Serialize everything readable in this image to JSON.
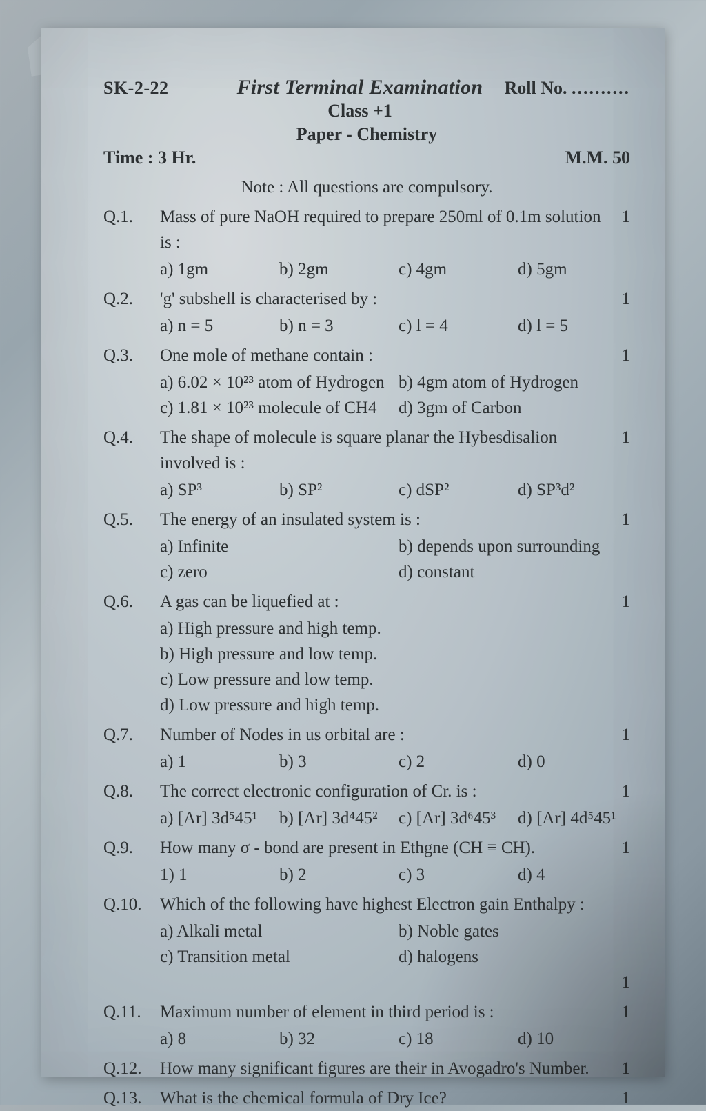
{
  "header": {
    "code": "SK-2-22",
    "exam_title": "First Terminal Examination",
    "class_line": "Class +1",
    "roll_label": "Roll No.",
    "roll_dots": "..........",
    "paper_line": "Paper - Chemistry",
    "time": "Time : 3 Hr.",
    "mm": "M.M. 50",
    "note": "Note : All questions are compulsory."
  },
  "questions": [
    {
      "num": "Q.1.",
      "stem": "Mass of pure NaOH required to prepare 250ml of 0.1m solution is :",
      "marks": "1",
      "opts": [
        "a)   1gm",
        "b) 2gm",
        "c) 4gm",
        "d) 5gm"
      ]
    },
    {
      "num": "Q.2.",
      "stem": "'g' subshell is characterised by :",
      "marks": "1",
      "opts": [
        "a)  n = 5",
        "b) n = 3",
        "c) l = 4",
        "d) l = 5"
      ]
    },
    {
      "num": "Q.3.",
      "stem": "One mole of methane contain :",
      "marks": "1",
      "opts": [
        "a) 6.02 × 10²³ atom of Hydrogen",
        "b) 4gm atom of Hydrogen",
        "c) 1.81 × 10²³ molecule of CH4",
        "d) 3gm of Carbon"
      ],
      "cols": "2"
    },
    {
      "num": "Q.4.",
      "stem": "The shape of molecule is square planar the Hybesdisalion involved is :",
      "marks": "1",
      "opts": [
        "a)  SP³",
        "b) SP²",
        "c) dSP²",
        "d) SP³d²"
      ]
    },
    {
      "num": "Q.5.",
      "stem": "The energy of an insulated system is :",
      "marks": "1",
      "opts": [
        "a)  Infinite",
        "b) depends upon surrounding",
        "c)  zero",
        "d) constant"
      ],
      "cols": "2"
    },
    {
      "num": "Q.6.",
      "stem": "A gas can be liquefied at :",
      "marks": "1",
      "opts": [
        "a)  High pressure and high temp.",
        "b)  High pressure and low temp.",
        "c)  Low pressure and low temp.",
        "d)  Low pressure and high temp."
      ],
      "cols": "stack"
    },
    {
      "num": "Q.7.",
      "stem": "Number of Nodes in us orbital are :",
      "marks": "1",
      "opts": [
        "a)  1",
        "b) 3",
        "c) 2",
        "d) 0"
      ]
    },
    {
      "num": "Q.8.",
      "stem": "The correct electronic configuration of Cr. is :",
      "marks": "1",
      "opts": [
        "a) [Ar] 3d⁵45¹",
        "b) [Ar] 3d⁴45²",
        "c) [Ar] 3d⁶45³",
        "d) [Ar] 4d⁵45¹"
      ]
    },
    {
      "num": "Q.9.",
      "stem": "How many σ - bond are present in Ethgne (CH ≡ CH).",
      "marks": "1",
      "opts": [
        "1)  1",
        "b) 2",
        "c) 3",
        "d) 4"
      ]
    },
    {
      "num": "Q.10.",
      "stem": "Which of the following have highest Electron gain Enthalpy :",
      "marks": "1",
      "opts": [
        "a)  Alkali metal",
        "b) Noble gates",
        "c)  Transition metal",
        "d) halogens"
      ],
      "cols": "2",
      "marks_below": true
    },
    {
      "num": "Q.11.",
      "stem": "Maximum number of element in third period is :",
      "marks": "1",
      "opts": [
        "a)  8",
        "b) 32",
        "c) 18",
        "d) 10"
      ]
    },
    {
      "num": "Q.12.",
      "stem": "How many significant figures are their in Avogadro's Number.",
      "marks": "1"
    },
    {
      "num": "Q.13.",
      "stem": "What is the chemical formula of Dry Ice?",
      "marks": "1"
    }
  ]
}
